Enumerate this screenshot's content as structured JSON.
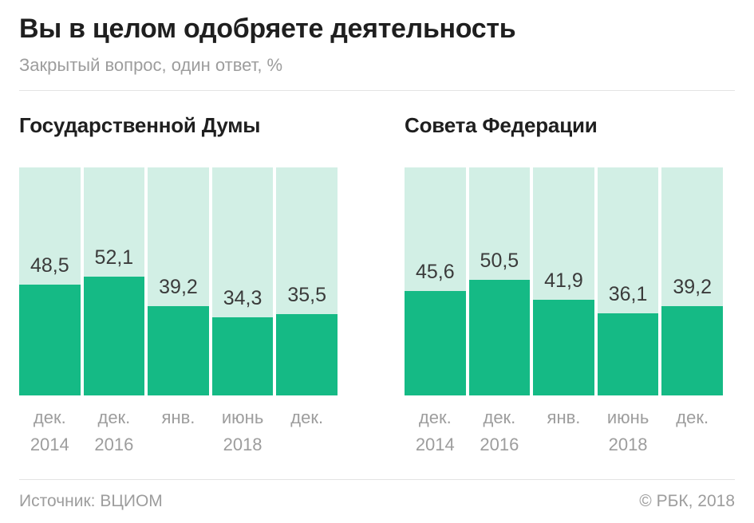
{
  "header": {
    "title": "Вы в целом одобряете деятельность",
    "subtitle": "Закрытый вопрос, один ответ, %"
  },
  "footer": {
    "source": "Источник: ВЦИОМ",
    "copyright": "© РБК, 2018"
  },
  "colors": {
    "bar": "#15ba85",
    "column_background": "#d2efe5",
    "title_text": "#1f1f1f",
    "muted_text": "#9d9d9d",
    "value_text": "#3b3b3b",
    "divider": "#e3e3e3"
  },
  "chart_data": [
    {
      "type": "bar",
      "title": "Государственной Думы",
      "categories": [
        "дек. 2014",
        "дек. 2016",
        "янв. 2018",
        "июнь 2018",
        "дек. 2018"
      ],
      "tick_months": [
        "дек.",
        "дек.",
        "янв.",
        "июнь",
        "дек."
      ],
      "tick_years": [
        "2014",
        "2016",
        "",
        "2018",
        ""
      ],
      "values": [
        48.5,
        52.1,
        39.2,
        34.3,
        35.5
      ],
      "value_labels": [
        "48,5",
        "52,1",
        "39,2",
        "34,3",
        "35,5"
      ],
      "ylim": [
        0,
        100
      ],
      "unit": "%",
      "grid": false,
      "legend_position": "none"
    },
    {
      "type": "bar",
      "title": "Совета Федерации",
      "categories": [
        "дек. 2014",
        "дек. 2016",
        "янв. 2018",
        "июнь 2018",
        "дек. 2018"
      ],
      "tick_months": [
        "дек.",
        "дек.",
        "янв.",
        "июнь",
        "дек."
      ],
      "tick_years": [
        "2014",
        "2016",
        "",
        "2018",
        ""
      ],
      "values": [
        45.6,
        50.5,
        41.9,
        36.1,
        39.2
      ],
      "value_labels": [
        "45,6",
        "50,5",
        "41,9",
        "36,1",
        "39,2"
      ],
      "ylim": [
        0,
        100
      ],
      "unit": "%",
      "grid": false,
      "legend_position": "none"
    }
  ]
}
